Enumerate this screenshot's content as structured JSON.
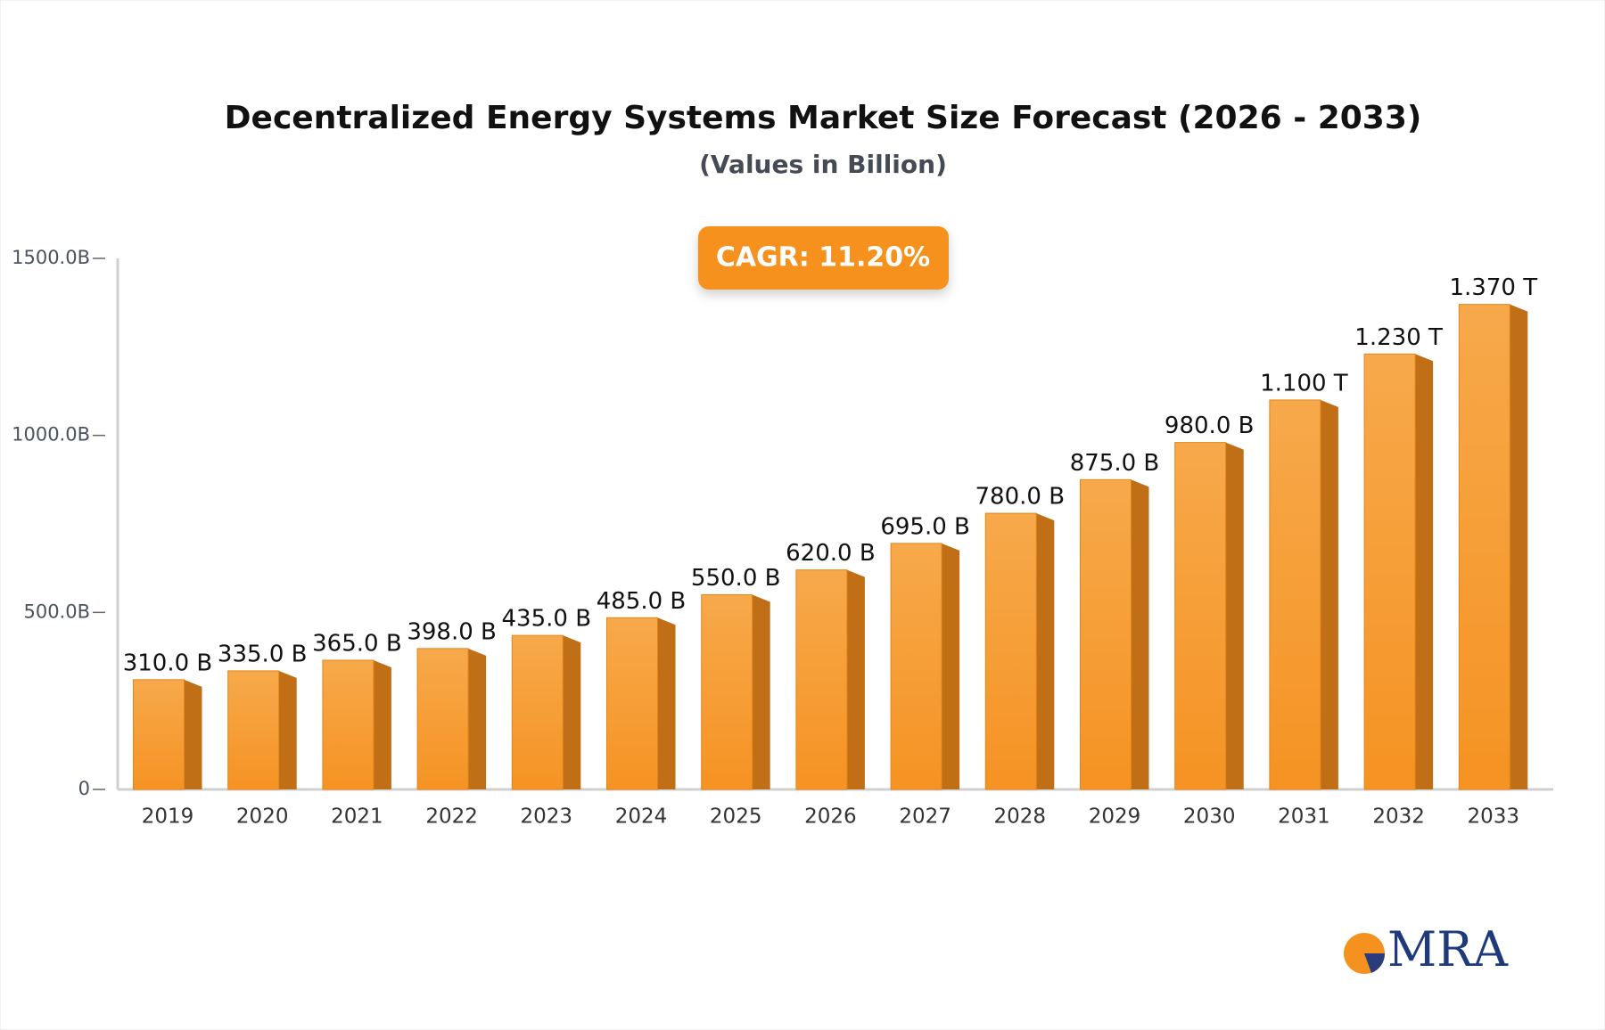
{
  "chart_data": {
    "type": "bar3d",
    "title": "Decentralized Energy Systems Market Size Forecast (2026 - 2033)",
    "subtitle": "(Values in Billion)",
    "annotation": "CAGR: 11.20%",
    "logo": "MRA",
    "categories": [
      "2019",
      "2020",
      "2021",
      "2022",
      "2023",
      "2024",
      "2025",
      "2026",
      "2027",
      "2028",
      "2029",
      "2030",
      "2031",
      "2032",
      "2033"
    ],
    "values": [
      310,
      335,
      365,
      398,
      435,
      485,
      550,
      620,
      695,
      780,
      875,
      980,
      1100,
      1230,
      1370
    ],
    "value_labels": [
      "310.0 B",
      "335.0 B",
      "365.0 B",
      "398.0 B",
      "435.0 B",
      "485.0 B",
      "550.0 B",
      "620.0 B",
      "695.0 B",
      "780.0 B",
      "875.0 B",
      "980.0 B",
      "1.100 T",
      "1.230 T",
      "1.370 T"
    ],
    "color": "#f7a13a",
    "ylim": [
      0,
      1500
    ],
    "yticks": [
      {
        "value": 0,
        "label": "0"
      },
      {
        "value": 500,
        "label": "500.0B"
      },
      {
        "value": 1000,
        "label": "1000.0B"
      },
      {
        "value": 1500,
        "label": "1500.0B"
      }
    ],
    "grid": false
  }
}
